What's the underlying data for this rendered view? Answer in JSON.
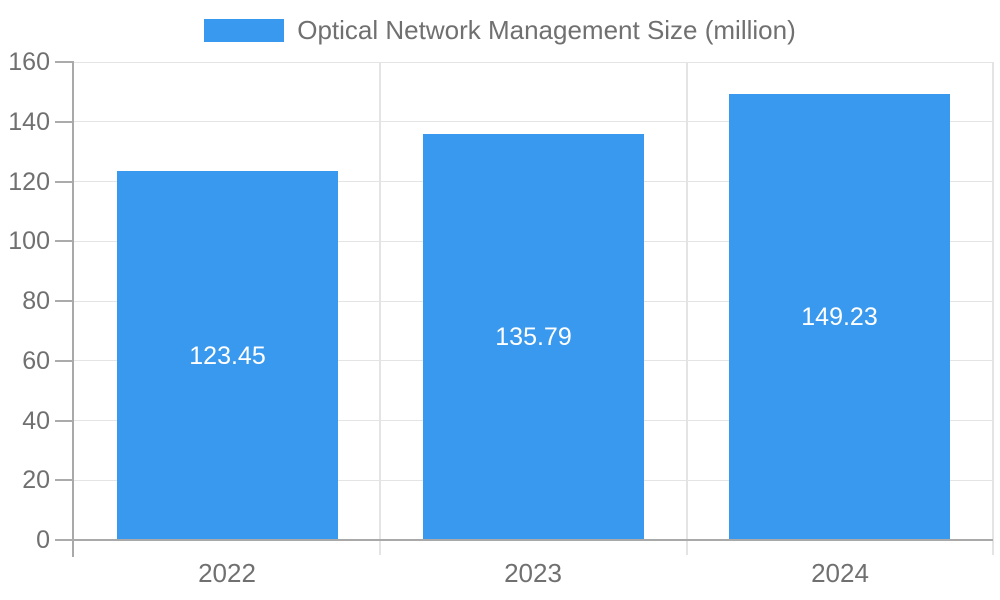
{
  "chart_data": {
    "type": "bar",
    "title": "Optical Network Management Size (million)",
    "categories": [
      "2022",
      "2023",
      "2024"
    ],
    "values": [
      123.45,
      135.79,
      149.23
    ],
    "value_labels": [
      "123.45",
      "135.79",
      "149.23"
    ],
    "xlabel": "",
    "ylabel": "",
    "ylim": [
      0,
      160
    ],
    "ytick_step": 20,
    "ytick_labels": [
      "0",
      "20",
      "40",
      "60",
      "80",
      "100",
      "120",
      "140",
      "160"
    ],
    "grid": true,
    "legend": {
      "position": "top",
      "label": "Optical Network Management Size (million)"
    },
    "colors": {
      "bar": "#3999EE",
      "bar_label_text": "#FFFFFF",
      "axis_text": "#707070",
      "axis_line": "#A9A9A9",
      "gridline": "#E4E4E4",
      "y_tick": "#ABABAB",
      "background": "#FFFFFF"
    }
  }
}
